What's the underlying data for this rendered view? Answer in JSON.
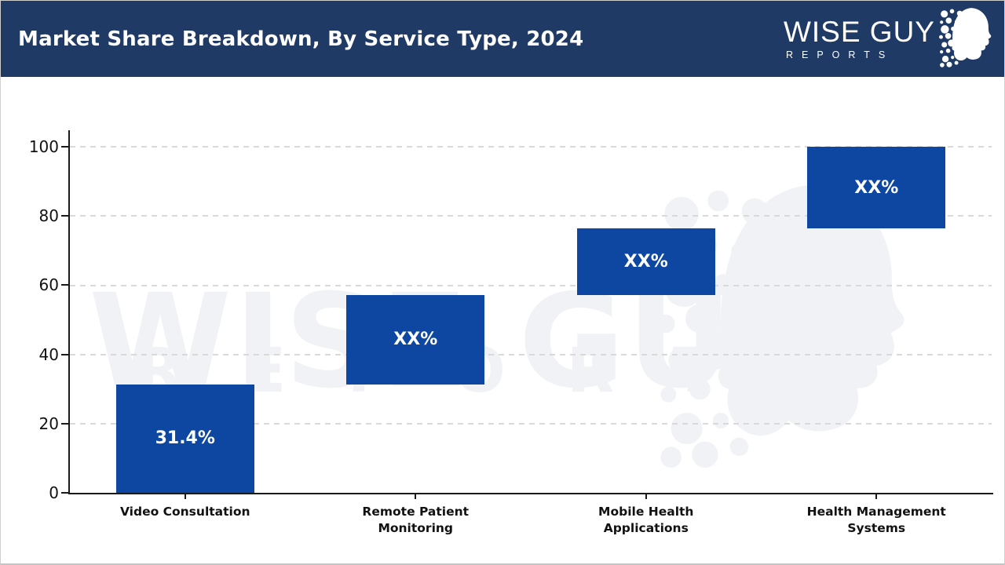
{
  "page": {
    "bg_color": "#ffffff",
    "border_color": "#cfcfcf"
  },
  "header": {
    "bg_color": "#203a66",
    "title": "Market Share Breakdown, By Service Type, 2024",
    "logo": {
      "wordmark": "WISE GUY",
      "subtext": "REPORTS",
      "face_icon": "dotted-head-profile"
    }
  },
  "watermark": {
    "wordmark": "WISE GUY",
    "subtext": "REPORTS",
    "face_icon": "dotted-head-profile",
    "color": "#f0f2f5"
  },
  "chart_data": {
    "type": "bar",
    "subtype": "floating-segment-waterfall",
    "title": "Market Share Breakdown, By Service Type, 2024",
    "categories": [
      "Video Consultation",
      "Remote Patient\nMonitoring",
      "Mobile Health\nApplications",
      "Health Management\nSystems"
    ],
    "series": [
      {
        "name": "Market share (%)",
        "segments": [
          {
            "category": "Video Consultation",
            "start": 0,
            "end": 31.4,
            "label": "31.4%"
          },
          {
            "category": "Remote Patient Monitoring",
            "start": 31.4,
            "end": 57.1,
            "label": "XX%"
          },
          {
            "category": "Mobile Health Applications",
            "start": 57.1,
            "end": 76.4,
            "label": "XX%"
          },
          {
            "category": "Health Management Systems",
            "start": 76.4,
            "end": 100,
            "label": "XX%"
          }
        ]
      }
    ],
    "xlabel": "",
    "ylabel": "",
    "yticks": [
      0,
      20,
      40,
      60,
      80,
      100
    ],
    "ylim": [
      0,
      104.8
    ],
    "bar_color": "#0d47a1",
    "bar_label_color": "#ffffff",
    "axis_color": "#1a1a1a",
    "gridline_color": "#d9d9d9",
    "grid": "horizontal-dashed",
    "legend": "none"
  }
}
